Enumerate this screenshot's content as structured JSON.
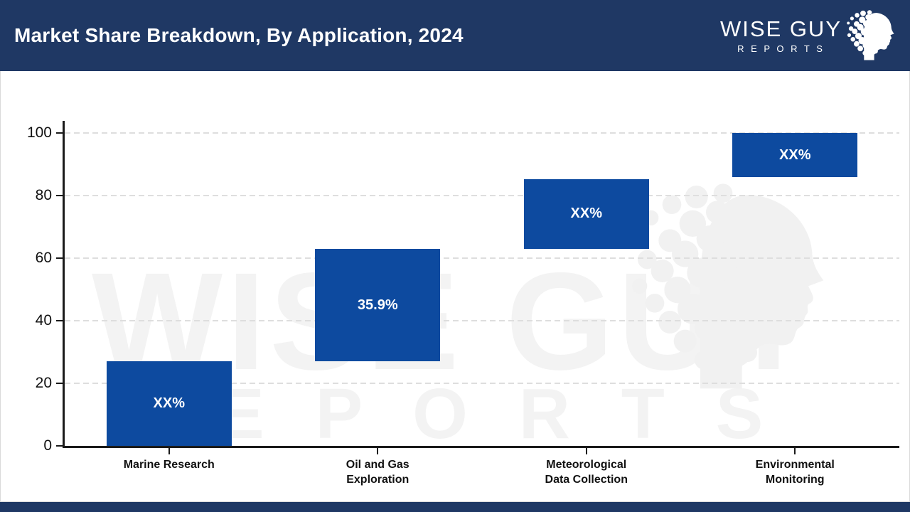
{
  "header": {
    "title": "Market Share Breakdown, By Application, 2024",
    "logo": {
      "line1": "WISE GUY",
      "line2": "R E P O R T S"
    }
  },
  "watermark": {
    "line1": "WISE GUY",
    "line2": "R E P O R T S"
  },
  "colors": {
    "header_bg": "#1f3864",
    "footer_bg": "#1f3864",
    "bar": "#0d4a9f",
    "grid": "#dedede",
    "axis": "#1a1a1a",
    "watermark": "#f3f3f3",
    "bar_label_text": "#ffffff",
    "title_text": "#ffffff"
  },
  "chart_data": {
    "type": "bar",
    "subtype": "floating-waterfall",
    "title": "Market Share Breakdown, By Application, 2024",
    "categories": [
      "Marine Research",
      "Oil and Gas\nExploration",
      "Meteorological\nData Collection",
      "Environmental\nMonitoring"
    ],
    "segments": [
      {
        "category": "Marine Research",
        "start": 0,
        "end": 27,
        "label": "XX%"
      },
      {
        "category": "Oil and Gas Exploration",
        "start": 27,
        "end": 62.9,
        "label": "35.9%"
      },
      {
        "category": "Meteorological Data Collection",
        "start": 63,
        "end": 85.2,
        "label": "XX%"
      },
      {
        "category": "Environmental Monitoring",
        "start": 85.8,
        "end": 100,
        "label": "XX%"
      }
    ],
    "xlabel": "",
    "ylabel": "",
    "ylim": [
      0,
      100
    ],
    "yticks": [
      0,
      20,
      40,
      60,
      80,
      100
    ],
    "grid": "dashed-horizontal",
    "legend": "none",
    "bar_color": "#0d4a9f",
    "value_labels_color": "#ffffff"
  }
}
